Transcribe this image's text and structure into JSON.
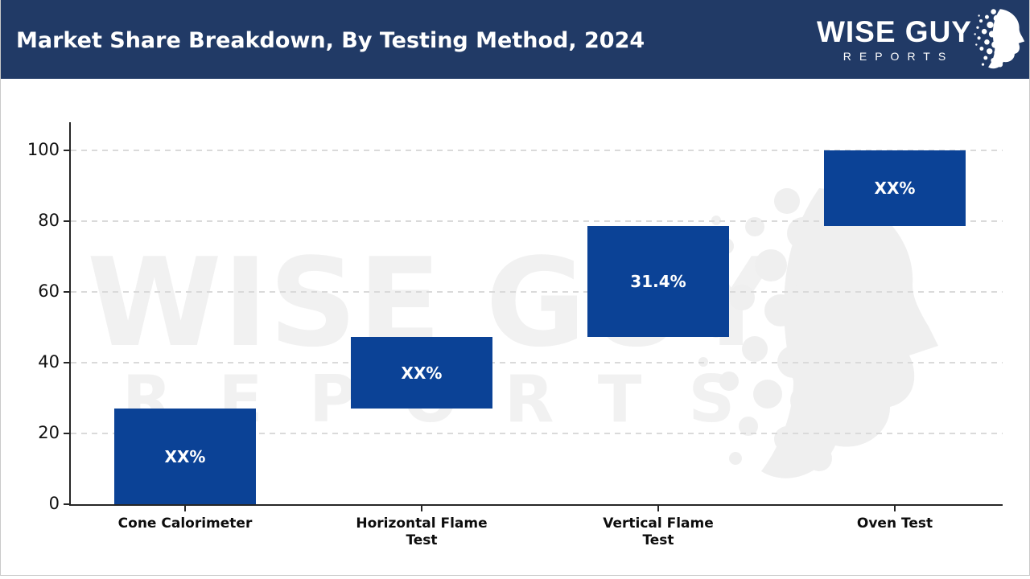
{
  "header": {
    "title": "Market Share Breakdown, By Testing Method, 2024",
    "logo": {
      "line1": "WISE GUY",
      "line2": "REPORTS"
    }
  },
  "watermark": {
    "line1": "WISE GUY",
    "line2": "REPORTS"
  },
  "colors": {
    "header_bg": "#213a66",
    "bar": "#0b4296",
    "axis": "#262626",
    "grid": "#dadada",
    "watermark": "#f1f1f1",
    "bar_label": "#ffffff"
  },
  "chart_data": {
    "type": "bar",
    "subtype": "waterfall",
    "title": "Market Share Breakdown, By Testing Method, 2024",
    "xlabel": "",
    "ylabel": "",
    "ylim": [
      0,
      107.8
    ],
    "y_ticks": [
      0,
      20,
      40,
      60,
      80,
      100
    ],
    "grid": "horizontal dashed",
    "legend": "none",
    "bar_color": "#0b4296",
    "categories": [
      "Cone Calorimeter",
      "Horizontal Flame Test",
      "Vertical Flame Test",
      "Oven Test"
    ],
    "bars": [
      {
        "category": "Cone Calorimeter",
        "lines": [
          "Cone Calorimeter"
        ],
        "start": 0,
        "end": 27.0,
        "value": 27.0,
        "label": "XX%"
      },
      {
        "category": "Horizontal Flame Test",
        "lines": [
          "Horizontal Flame",
          "Test"
        ],
        "start": 27.0,
        "end": 47.2,
        "value": 20.2,
        "label": "XX%"
      },
      {
        "category": "Vertical Flame Test",
        "lines": [
          "Vertical Flame",
          "Test"
        ],
        "start": 47.2,
        "end": 78.6,
        "value": 31.4,
        "label": "31.4%"
      },
      {
        "category": "Oven Test",
        "lines": [
          "Oven Test"
        ],
        "start": 78.6,
        "end": 100,
        "value": 21.4,
        "label": "XX%"
      }
    ]
  }
}
